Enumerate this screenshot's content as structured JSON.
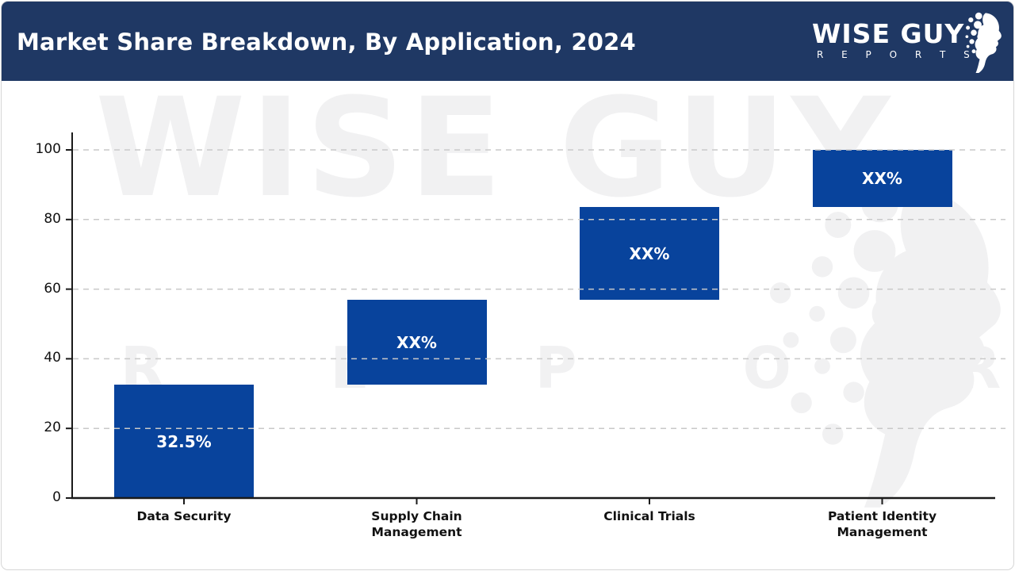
{
  "header": {
    "title": "Market Share Breakdown, By Application, 2024",
    "bg_color": "#1f3864",
    "logo": {
      "line1": "WISE GUY",
      "line2": "R E P O R T S"
    }
  },
  "watermark": {
    "line1": "WISE GUY",
    "line2": "R E P O R T S"
  },
  "chart_data": {
    "type": "bar",
    "subtype": "waterfall",
    "title": "Market Share Breakdown, By Application, 2024",
    "categories": [
      "Data Security",
      "Supply Chain Management",
      "Clinical Trials",
      "Patient Identity Management"
    ],
    "category_label_lines": [
      [
        "Data Security"
      ],
      [
        "Supply Chain",
        "Management"
      ],
      [
        "Clinical Trials"
      ],
      [
        "Patient Identity",
        "Management"
      ]
    ],
    "bars": [
      {
        "category": "Data Security",
        "start": 0,
        "end": 32.5,
        "label": "32.5%"
      },
      {
        "category": "Supply Chain Management",
        "start": 32.5,
        "end": 57,
        "label": "XX%"
      },
      {
        "category": "Clinical Trials",
        "start": 57,
        "end": 83.5,
        "label": "XX%"
      },
      {
        "category": "Patient Identity Management",
        "start": 83.5,
        "end": 100,
        "label": "XX%"
      }
    ],
    "yticks": [
      0,
      20,
      40,
      60,
      80,
      100
    ],
    "ylim": [
      0,
      100
    ],
    "bar_color": "#08439c",
    "gridline_color": "#c9c9c9",
    "grid": "dashed horizontal, drawn over bars",
    "legend": "none",
    "xlabel": "",
    "ylabel": ""
  }
}
